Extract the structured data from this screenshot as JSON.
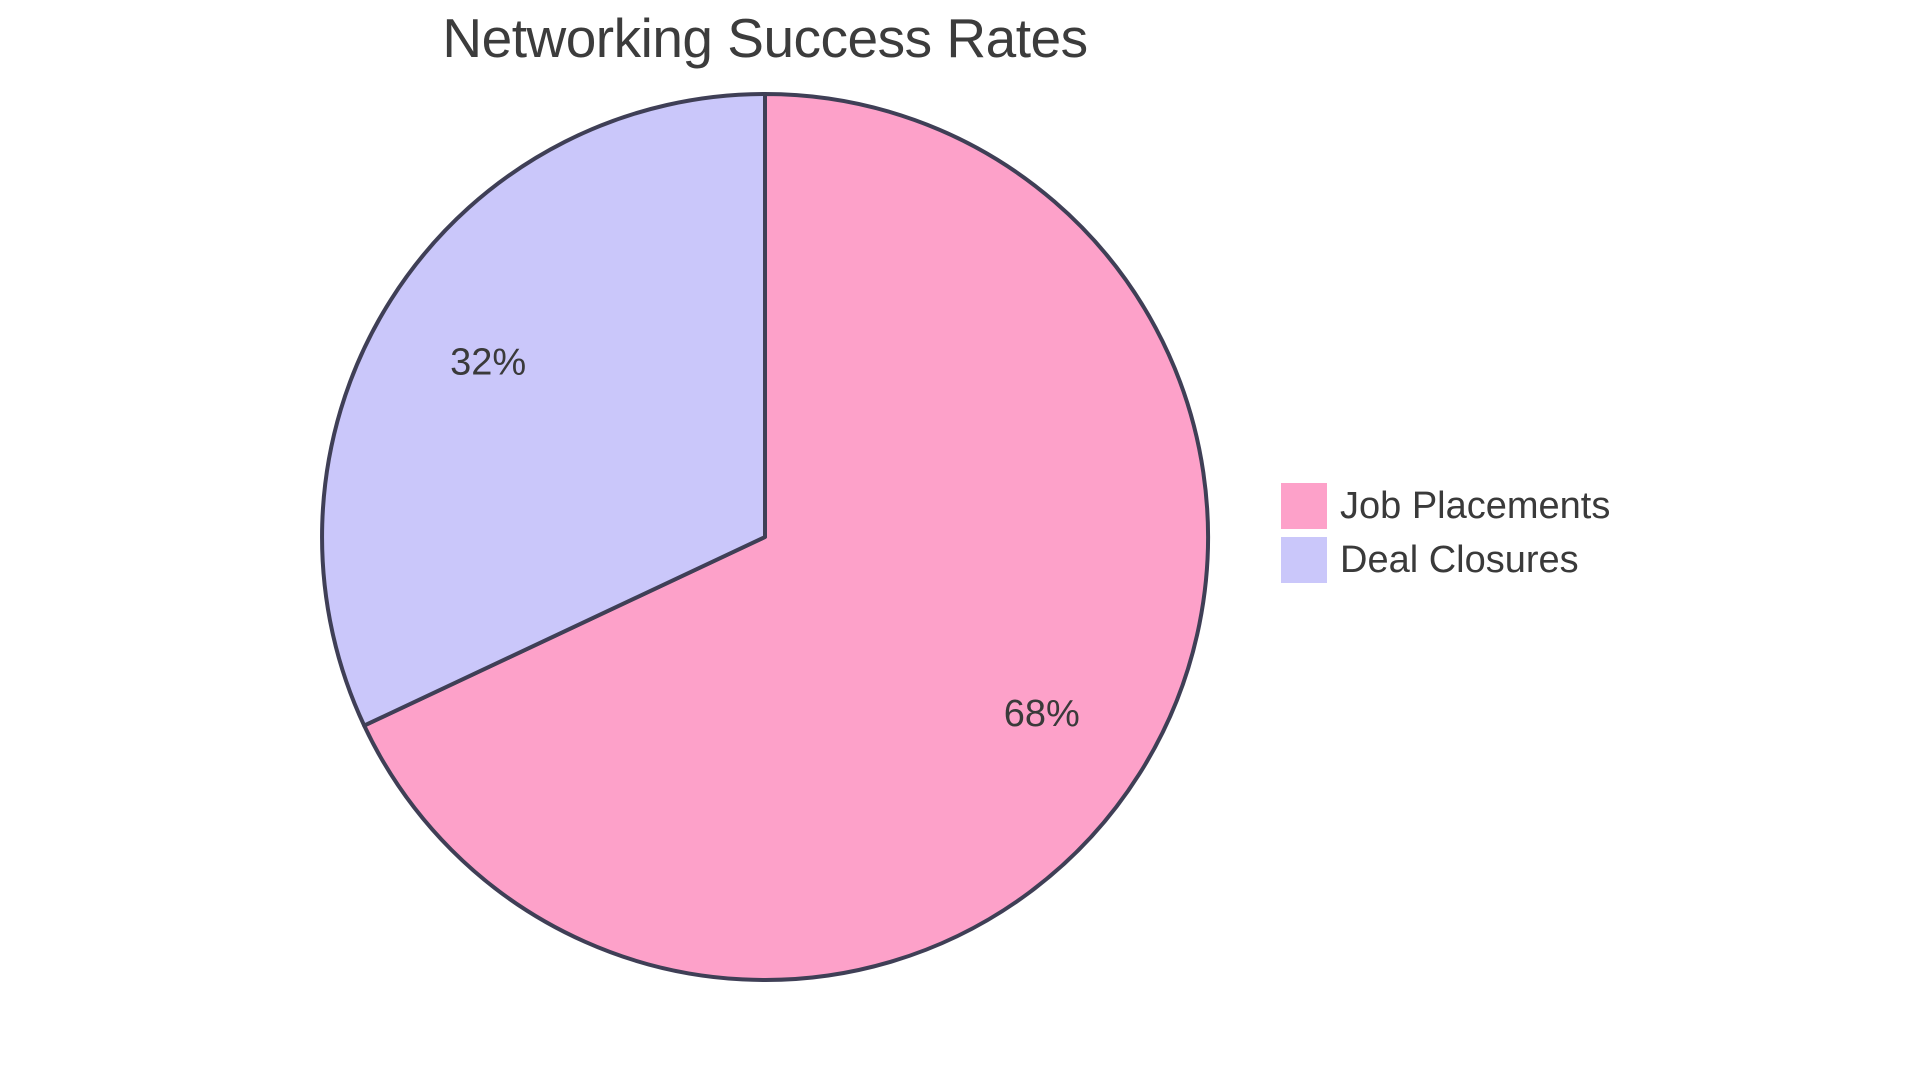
{
  "chart_data": {
    "type": "pie",
    "title": "Networking Success Rates",
    "slices": [
      {
        "label": "Job Placements",
        "value": 68,
        "pct_label": "68%",
        "color": "#fda1c9"
      },
      {
        "label": "Deal Closures",
        "value": 32,
        "pct_label": "32%",
        "color": "#cac7fa"
      }
    ],
    "start_angle_deg": -90,
    "direction": "clockwise",
    "stroke_color": "#3f3f56",
    "stroke_width": 4,
    "label_color": "#3a3a3a",
    "label_radius_fraction": 0.74,
    "legend_position": "right",
    "background_color": "#ffffff"
  }
}
